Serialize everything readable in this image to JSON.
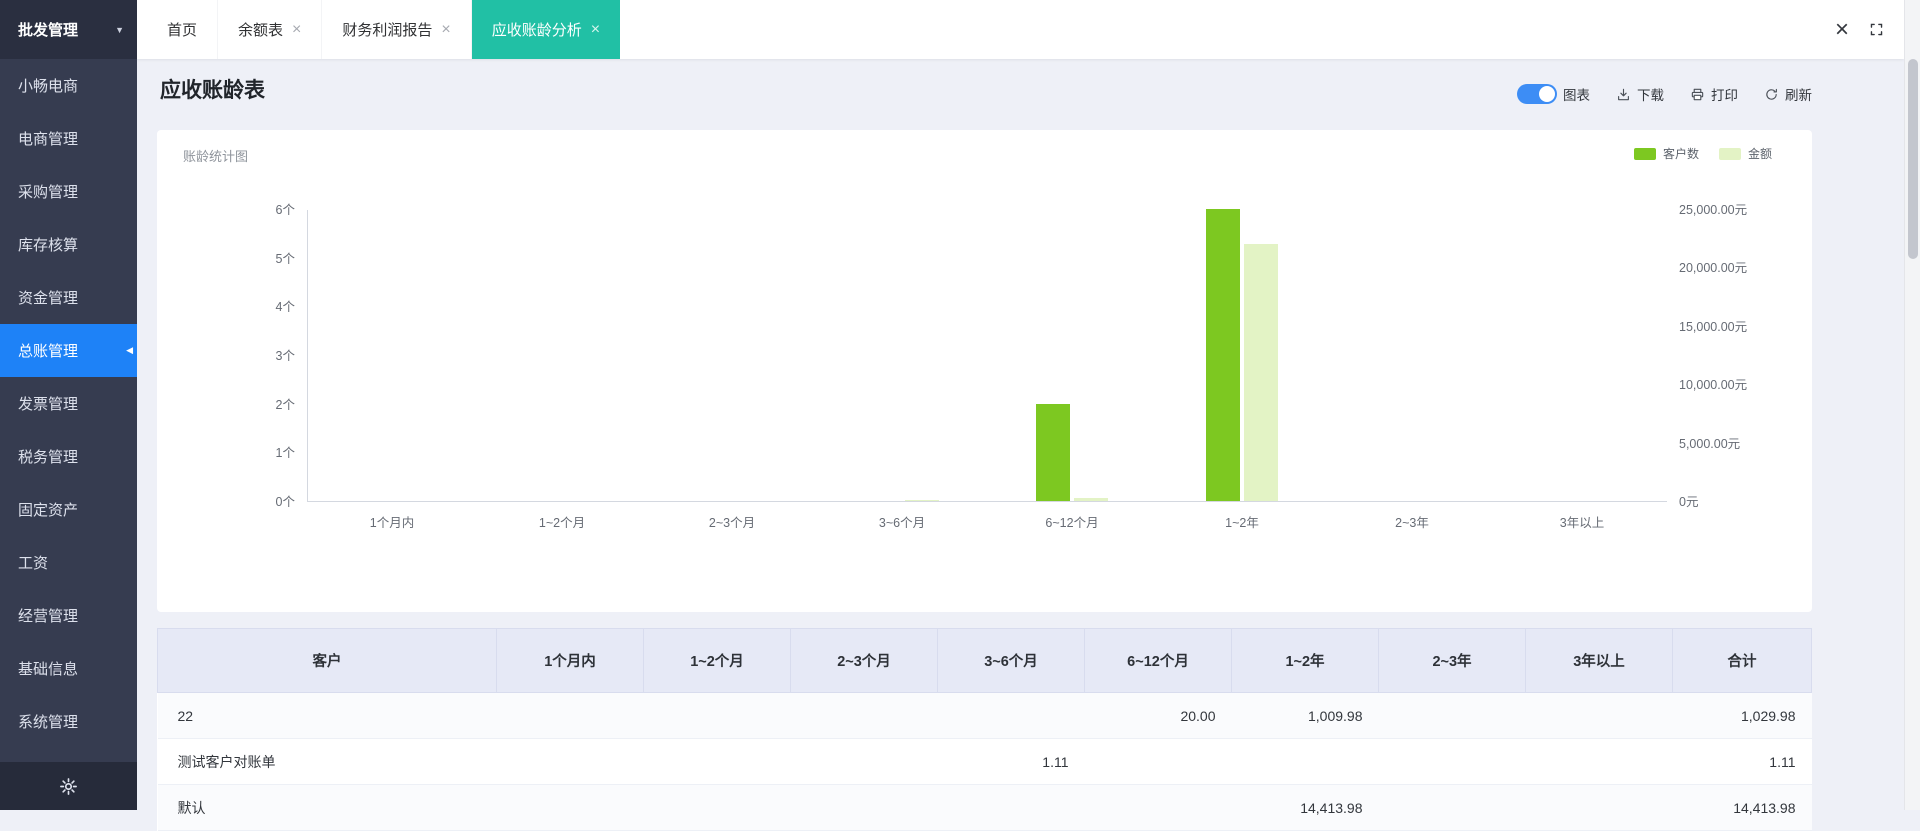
{
  "icons": {
    "dropdown": "▼",
    "collapse": "◀",
    "close_tab": "×",
    "window_close": "×"
  },
  "sidebar": {
    "header_label": "批发管理",
    "items": [
      {
        "label": "小畅电商",
        "active": false
      },
      {
        "label": "电商管理",
        "active": false
      },
      {
        "label": "采购管理",
        "active": false
      },
      {
        "label": "库存核算",
        "active": false
      },
      {
        "label": "资金管理",
        "active": false
      },
      {
        "label": "总账管理",
        "active": true
      },
      {
        "label": "发票管理",
        "active": false
      },
      {
        "label": "税务管理",
        "active": false
      },
      {
        "label": "固定资产",
        "active": false
      },
      {
        "label": "工资",
        "active": false
      },
      {
        "label": "经营管理",
        "active": false
      },
      {
        "label": "基础信息",
        "active": false
      },
      {
        "label": "系统管理",
        "active": false
      }
    ]
  },
  "tabs": {
    "items": [
      {
        "label": "首页",
        "closable": false,
        "active": false
      },
      {
        "label": "余额表",
        "closable": true,
        "active": false
      },
      {
        "label": "财务利润报告",
        "closable": true,
        "active": false
      },
      {
        "label": "应收账龄分析",
        "closable": true,
        "active": true
      }
    ]
  },
  "page": {
    "title": "应收账龄表"
  },
  "toolbar": {
    "chart_toggle_label": "图表",
    "toggle_on": true,
    "download_label": "下载",
    "print_label": "打印",
    "refresh_label": "刷新"
  },
  "chart_data": {
    "type": "bar",
    "title": "账龄统计图",
    "categories": [
      "1个月内",
      "1~2个月",
      "2~3个月",
      "3~6个月",
      "6~12个月",
      "1~2年",
      "2~3年",
      "3年以上"
    ],
    "series": [
      {
        "name": "客户数",
        "color": "#7dc821",
        "axis": "left",
        "values": [
          0,
          0,
          0,
          0,
          2,
          6,
          0,
          0
        ]
      },
      {
        "name": "金额",
        "color": "#e3f3c5",
        "axis": "right",
        "values": [
          0,
          0,
          0,
          1.11,
          20,
          22000,
          0,
          0
        ]
      }
    ],
    "left_axis": {
      "ticks": [
        "6个",
        "5个",
        "4个",
        "3个",
        "2个",
        "1个",
        "0个"
      ],
      "max": 6
    },
    "right_axis": {
      "ticks": [
        "25,000.00元",
        "20,000.00元",
        "15,000.00元",
        "10,000.00元",
        "5,000.00元",
        "0元"
      ],
      "max": 25000
    },
    "legend_position": "top-right",
    "grid": false
  },
  "table": {
    "columns": [
      "客户",
      "1个月内",
      "1~2个月",
      "2~3个月",
      "3~6个月",
      "6~12个月",
      "1~2年",
      "2~3年",
      "3年以上",
      "合计"
    ],
    "rows": [
      [
        "22",
        "",
        "",
        "",
        "",
        "20.00",
        "1,009.98",
        "",
        "",
        "1,029.98"
      ],
      [
        "测试客户对账单",
        "",
        "",
        "",
        "1.11",
        "",
        "",
        "",
        "",
        "1.11"
      ],
      [
        "默认",
        "",
        "",
        "",
        "",
        "",
        "14,413.98",
        "",
        "",
        "14,413.98"
      ]
    ]
  }
}
